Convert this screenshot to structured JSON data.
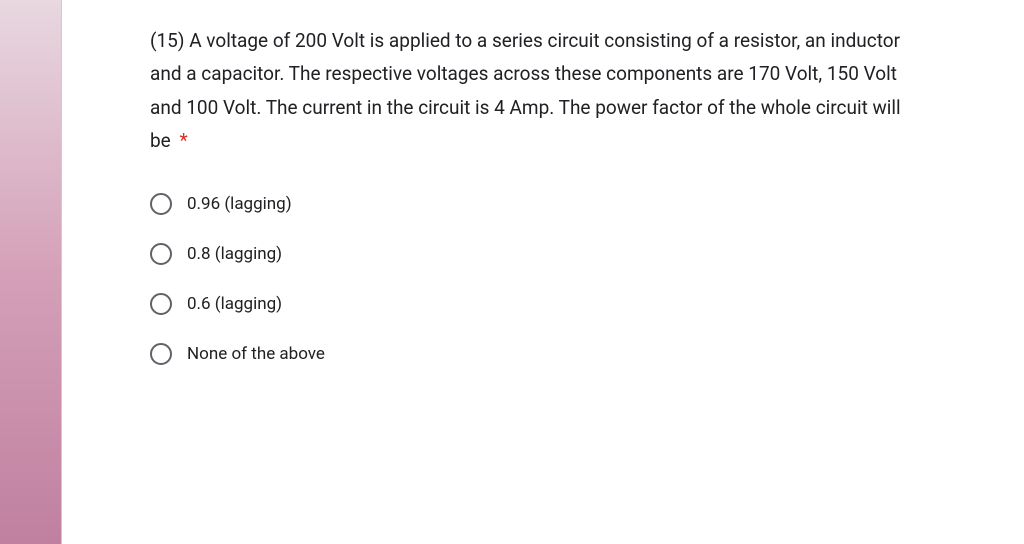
{
  "question": {
    "number": "(15)",
    "text": "A voltage of 200 Volt is applied to a series circuit consisting of a resistor, an inductor and a capacitor. The respective voltages across these components are 170 Volt, 150 Volt and 100 Volt. The current in the circuit is 4 Amp. The power factor of the whole circuit will be",
    "required_mark": "*"
  },
  "options": [
    {
      "label": "0.96 (lagging)"
    },
    {
      "label": "0.8 (lagging)"
    },
    {
      "label": "0.6 (lagging)"
    },
    {
      "label": "None of the above"
    }
  ],
  "styles": {
    "background_color": "#ffffff",
    "text_color": "#202124",
    "asterisk_color": "#d93025",
    "radio_border_color": "#5f6368",
    "question_fontsize": 19,
    "option_fontsize": 17
  }
}
